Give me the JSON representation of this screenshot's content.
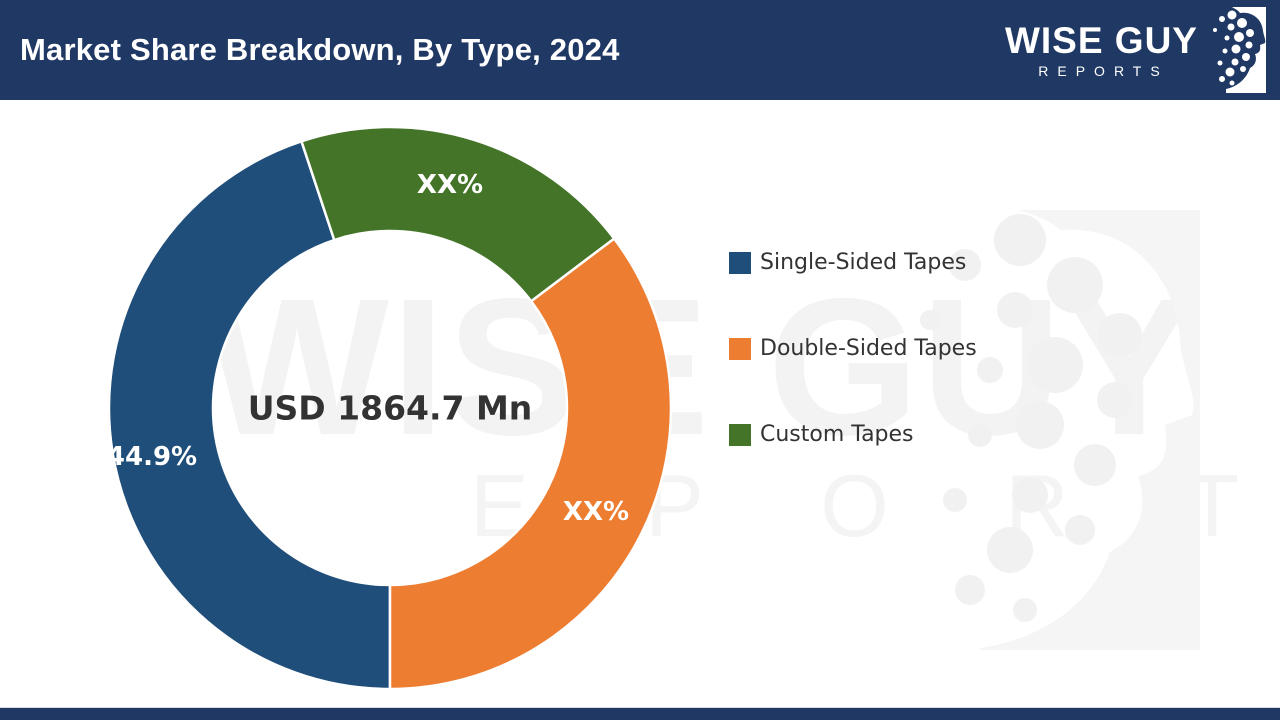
{
  "header": {
    "title": "Market Share Breakdown, By Type, 2024",
    "logo": {
      "line1": "WISE GUY",
      "line2": "REPORTS"
    }
  },
  "watermark": {
    "line1": "WISE GUY",
    "line2": "REPORTS"
  },
  "chart_data": {
    "type": "pie",
    "subtype": "donut",
    "title": "Market Share Breakdown, By Type, 2024",
    "center_label": "USD 1864.7 Mn",
    "start_angle_deg": 180,
    "direction": "clockwise",
    "outer_radius_px": 281,
    "inner_radius_px": 177,
    "segments": [
      {
        "name": "Single-Sided Tapes",
        "label": "44.9%",
        "value_pct": 44.9,
        "color": "#204E7A"
      },
      {
        "name": "Custom Tapes",
        "label": "XX%",
        "value_pct": 19.8,
        "color": "#437428"
      },
      {
        "name": "Double-Sided Tapes",
        "label": "XX%",
        "value_pct": 35.3,
        "color": "#ED7D31"
      }
    ],
    "legend_position": "right"
  },
  "legend": {
    "items": [
      {
        "label": "Single-Sided Tapes",
        "color": "#204E7A"
      },
      {
        "label": "Double-Sided Tapes",
        "color": "#ED7D31"
      },
      {
        "label": "Custom Tapes",
        "color": "#437428"
      }
    ]
  },
  "colors": {
    "header_bar": "#203864",
    "footer_bar": "#203864",
    "center_text": "#333333",
    "legend_text": "#333333",
    "watermark": "#f3f3f3",
    "slice_gap": "#ffffff"
  }
}
